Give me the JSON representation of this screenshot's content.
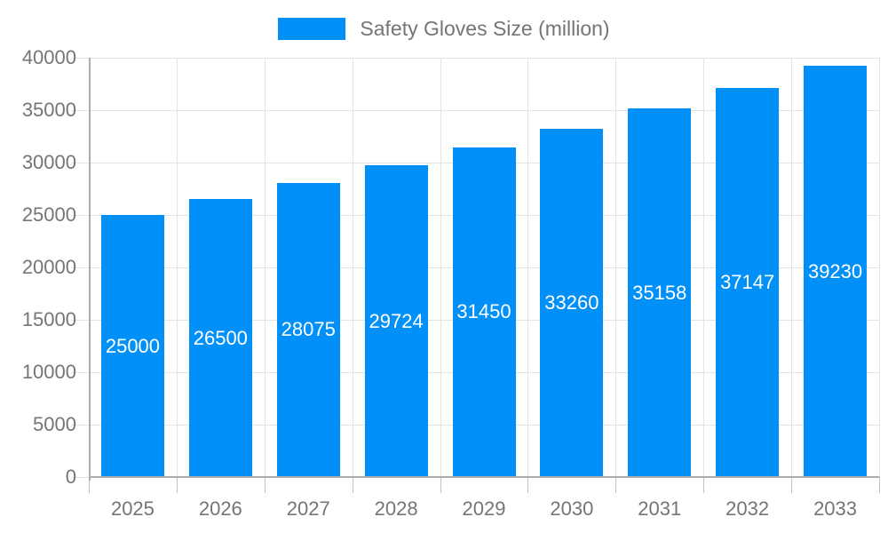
{
  "legend": {
    "label": "Safety Gloves Size (million)"
  },
  "colors": {
    "bar": "#0190f8",
    "bar_label_text": "#ffffff",
    "axis_text": "#757575",
    "gridline": "#e4e4e4",
    "axis_line": "#adadad",
    "background": "#ffffff"
  },
  "chart_data": {
    "type": "bar",
    "title": "Safety Gloves Size (million)",
    "categories": [
      "2025",
      "2026",
      "2027",
      "2028",
      "2029",
      "2030",
      "2031",
      "2032",
      "2033"
    ],
    "series": [
      {
        "name": "Safety Gloves Size (million)",
        "values": [
          25000,
          26500,
          28075,
          29724,
          31450,
          33260,
          35158,
          37147,
          39230
        ]
      }
    ],
    "bar_value_labels": [
      "25000",
      "26500",
      "28075",
      "29724",
      "31450",
      "33260",
      "35158",
      "37147",
      "39230"
    ],
    "xlabel": "",
    "ylabel": "",
    "ylim": [
      0,
      40000
    ],
    "ytick_step": 5000,
    "ytick_labels": [
      "0",
      "5000",
      "10000",
      "15000",
      "20000",
      "25000",
      "30000",
      "35000",
      "40000"
    ],
    "grid": true,
    "legend_position": "top-center"
  }
}
